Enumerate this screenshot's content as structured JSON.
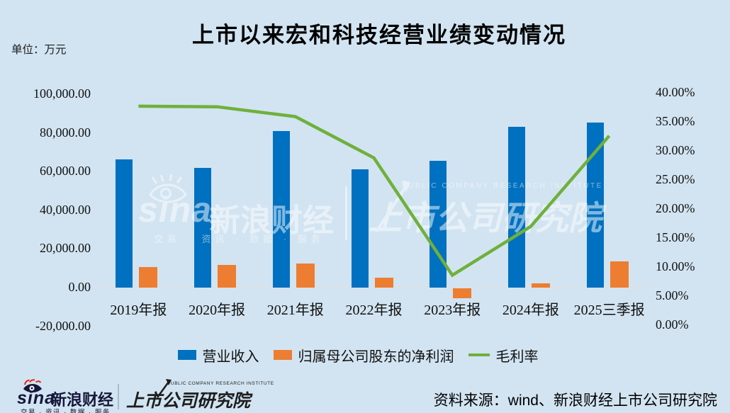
{
  "meta": {
    "title": "上市以来宏和科技经营业绩变动情况",
    "unit_label": "单位：万元",
    "source": "资料来源：wind、新浪财经上市公司研究院"
  },
  "chart_data": {
    "type": "bar+line",
    "title": "上市以来宏和科技经营业绩变动情况",
    "unit": "万元",
    "grid": false,
    "legend_position": "bottom",
    "categories": [
      "2019年报",
      "2020年报",
      "2021年报",
      "2022年报",
      "2023年报",
      "2024年报",
      "2025三季报"
    ],
    "series": [
      {
        "name": "营业收入",
        "type": "bar",
        "axis": "left",
        "color": "#0070c0",
        "values": [
          66300,
          62000,
          80800,
          61000,
          65500,
          83300,
          85300
        ]
      },
      {
        "name": "归属母公司股东的净利润",
        "type": "bar",
        "axis": "left",
        "color": "#ed7d31",
        "values": [
          10500,
          11900,
          12300,
          5100,
          -5300,
          2200,
          13700
        ]
      },
      {
        "name": "毛利率",
        "type": "line",
        "axis": "right",
        "color": "#6fb03c",
        "unit": "%",
        "values": [
          37.7,
          37.6,
          35.9,
          28.8,
          8.6,
          17.0,
          32.6
        ]
      }
    ],
    "left_axis": {
      "min": -20000,
      "max": 100000,
      "step": 20000,
      "ticks": [
        {
          "v": 100000,
          "label": "100,000.00"
        },
        {
          "v": 80000,
          "label": "80,000.00"
        },
        {
          "v": 60000,
          "label": "60,000.00"
        },
        {
          "v": 40000,
          "label": "40,000.00"
        },
        {
          "v": 20000,
          "label": "20,000.00"
        },
        {
          "v": 0,
          "label": "0.00"
        },
        {
          "v": -20000,
          "label": "-20,000.00"
        }
      ]
    },
    "right_axis": {
      "min": 0,
      "max": 40,
      "step": 5,
      "ticks": [
        {
          "v": 40,
          "label": "40.00%"
        },
        {
          "v": 35,
          "label": "35.00%"
        },
        {
          "v": 30,
          "label": "30.00%"
        },
        {
          "v": 25,
          "label": "25.00%"
        },
        {
          "v": 20,
          "label": "20.00%"
        },
        {
          "v": 15,
          "label": "15.00%"
        },
        {
          "v": 10,
          "label": "10.00%"
        },
        {
          "v": 5,
          "label": "5.00%"
        },
        {
          "v": 0,
          "label": "0.00%"
        }
      ]
    }
  },
  "watermark": {
    "sina_text": "sina",
    "cn_text": "新浪财经",
    "tagline": "交易 · 资讯 · 数据 · 服务",
    "institute_en": "PUBLIC COMPANY RESEARCH INSTITUTE",
    "institute_text": "上市公司研究院"
  },
  "footer": {
    "sina_text": "sina",
    "sina_cn": "新浪财经",
    "sina_tagline": "交易 · 资讯 · 数据 · 服务",
    "institute_en": "PUBLIC COMPANY RESEARCH INSTITUTE",
    "institute_text": "上市公司研究院"
  }
}
